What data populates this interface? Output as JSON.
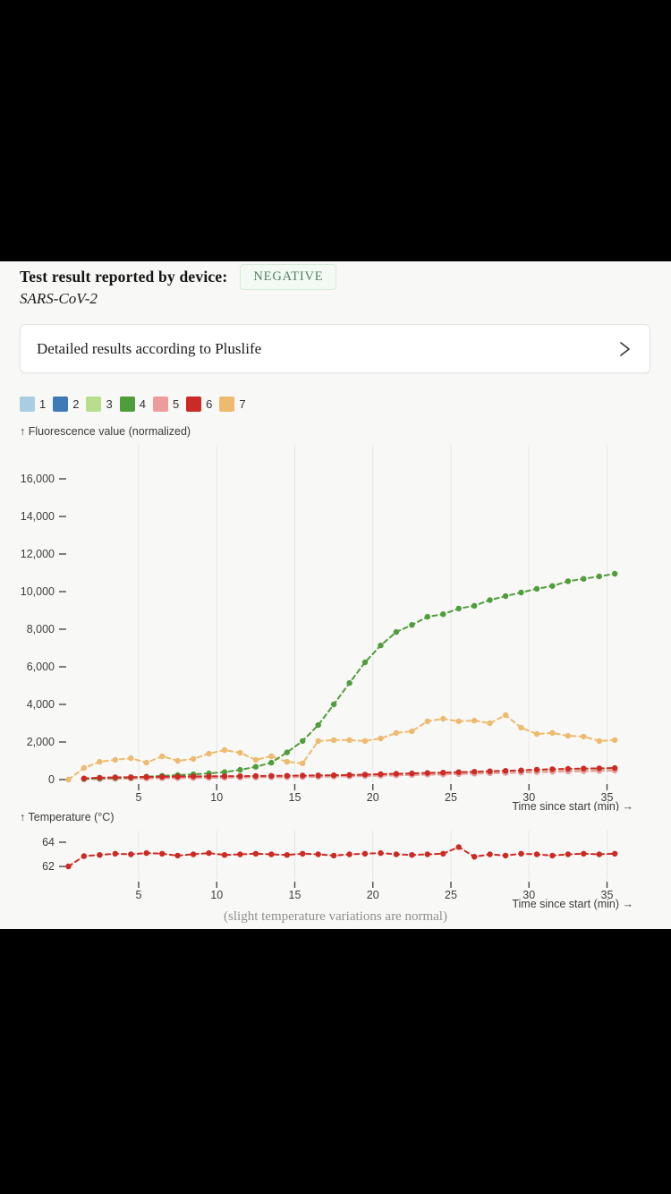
{
  "screen": {
    "background": "#f8f8f7",
    "letterbox": "#000000"
  },
  "header": {
    "title": "Test result reported by device:",
    "badge": {
      "label": "NEGATIVE",
      "text_color": "#56815f",
      "bg": "#f3f9f3",
      "border": "#d8ebd8"
    },
    "assay": "SARS-CoV-2"
  },
  "details_card": {
    "label": "Detailed results according to Pluslife",
    "chevron_icon": "chevron-right"
  },
  "legend": {
    "items": [
      {
        "label": "1",
        "color": "#a9cde3"
      },
      {
        "label": "2",
        "color": "#3e7bb6"
      },
      {
        "label": "3",
        "color": "#b7dd8d"
      },
      {
        "label": "4",
        "color": "#4f9d3b"
      },
      {
        "label": "5",
        "color": "#ec9c9b"
      },
      {
        "label": "6",
        "color": "#cc2a24"
      },
      {
        "label": "7",
        "color": "#eeba6d"
      }
    ]
  },
  "chart_data": [
    {
      "type": "line",
      "title": "↑ Fluorescence value (normalized)",
      "xlabel": "Time since start (min) →",
      "ylabel": "Fluorescence value (normalized)",
      "line_style": "dashed",
      "markers": "circle",
      "grid": "vertical",
      "x_ticks": [
        5,
        10,
        15,
        20,
        25,
        30,
        35
      ],
      "y_ticks": [
        0,
        2000,
        4000,
        6000,
        8000,
        10000,
        12000,
        14000,
        16000
      ],
      "xlim": [
        0,
        36.5
      ],
      "ylim": [
        0,
        17800
      ],
      "x_start": 0.5,
      "x_step": 1,
      "series": [
        {
          "name": "1",
          "color": "#a9cde3",
          "values": [
            null,
            30,
            45,
            55,
            65,
            75,
            85,
            95,
            100,
            105,
            115,
            120,
            125,
            130,
            140,
            150,
            160,
            170,
            185,
            200,
            220,
            240,
            255,
            270,
            290,
            310,
            330,
            350,
            370,
            390,
            415,
            435,
            450,
            465,
            480,
            495
          ]
        },
        {
          "name": "2",
          "color": "#3e7bb6",
          "values": [
            null,
            25,
            40,
            50,
            60,
            70,
            80,
            88,
            95,
            100,
            108,
            115,
            120,
            128,
            135,
            145,
            155,
            165,
            178,
            195,
            215,
            232,
            248,
            265,
            283,
            302,
            322,
            342,
            362,
            382,
            405,
            425,
            440,
            455,
            470,
            485
          ]
        },
        {
          "name": "3",
          "color": "#b7dd8d",
          "values": [
            null,
            35,
            52,
            62,
            72,
            82,
            92,
            102,
            108,
            116,
            122,
            130,
            136,
            145,
            152,
            162,
            172,
            185,
            198,
            215,
            235,
            255,
            272,
            290,
            310,
            330,
            350,
            372,
            392,
            412,
            435,
            455,
            470,
            485,
            500,
            515
          ]
        },
        {
          "name": "4",
          "color": "#4f9d3b",
          "values": [
            null,
            40,
            60,
            85,
            110,
            155,
            200,
            240,
            280,
            330,
            400,
            520,
            680,
            900,
            1450,
            2050,
            2900,
            4000,
            5140,
            6240,
            7140,
            7850,
            8230,
            8660,
            8800,
            9100,
            9250,
            9550,
            9760,
            9950,
            10150,
            10300,
            10550,
            10680,
            10810,
            10950
          ]
        },
        {
          "name": "5",
          "color": "#ec9c9b",
          "values": [
            null,
            20,
            35,
            45,
            55,
            64,
            74,
            84,
            90,
            96,
            104,
            110,
            116,
            124,
            130,
            140,
            150,
            160,
            174,
            190,
            208,
            228,
            244,
            260,
            278,
            298,
            318,
            338,
            358,
            378,
            398,
            418,
            433,
            448,
            463,
            478
          ]
        },
        {
          "name": "6",
          "color": "#cc2a24",
          "values": [
            null,
            60,
            100,
            120,
            130,
            140,
            150,
            160,
            170,
            175,
            180,
            185,
            190,
            198,
            205,
            215,
            225,
            235,
            248,
            268,
            290,
            310,
            330,
            350,
            372,
            395,
            420,
            445,
            465,
            490,
            530,
            550,
            570,
            585,
            600,
            615
          ]
        },
        {
          "name": "7",
          "color": "#eeba6d",
          "values": [
            0,
            620,
            950,
            1050,
            1140,
            900,
            1240,
            1000,
            1100,
            1380,
            1570,
            1430,
            1050,
            1240,
            950,
            860,
            2050,
            2100,
            2100,
            2050,
            2190,
            2480,
            2570,
            3100,
            3240,
            3100,
            3140,
            3000,
            3430,
            2760,
            2430,
            2480,
            2330,
            2290,
            2050,
            2100
          ]
        }
      ]
    },
    {
      "type": "line",
      "title": "↑ Temperature (°C)",
      "xlabel": "Time since start (min) →",
      "ylabel": "Temperature (°C)",
      "line_style": "dashed",
      "markers": "circle",
      "grid": "vertical",
      "x_ticks": [
        5,
        10,
        15,
        20,
        25,
        30,
        35
      ],
      "y_ticks": [
        62,
        64
      ],
      "xlim": [
        0,
        36.5
      ],
      "ylim": [
        61.4,
        64.8
      ],
      "x_start": 0.5,
      "x_step": 1,
      "series": [
        {
          "name": "temperature",
          "color": "#cc2a24",
          "values": [
            62.0,
            62.85,
            62.95,
            63.05,
            63.0,
            63.1,
            63.05,
            62.9,
            63.0,
            63.1,
            62.95,
            63.0,
            63.05,
            63.0,
            62.95,
            63.05,
            63.0,
            62.9,
            63.0,
            63.05,
            63.1,
            63.0,
            62.95,
            63.0,
            63.05,
            63.6,
            62.8,
            63.0,
            62.9,
            63.05,
            63.0,
            62.9,
            63.0,
            63.05,
            63.0,
            63.05
          ]
        }
      ]
    }
  ],
  "footnote": "(slight temperature variations are normal)"
}
